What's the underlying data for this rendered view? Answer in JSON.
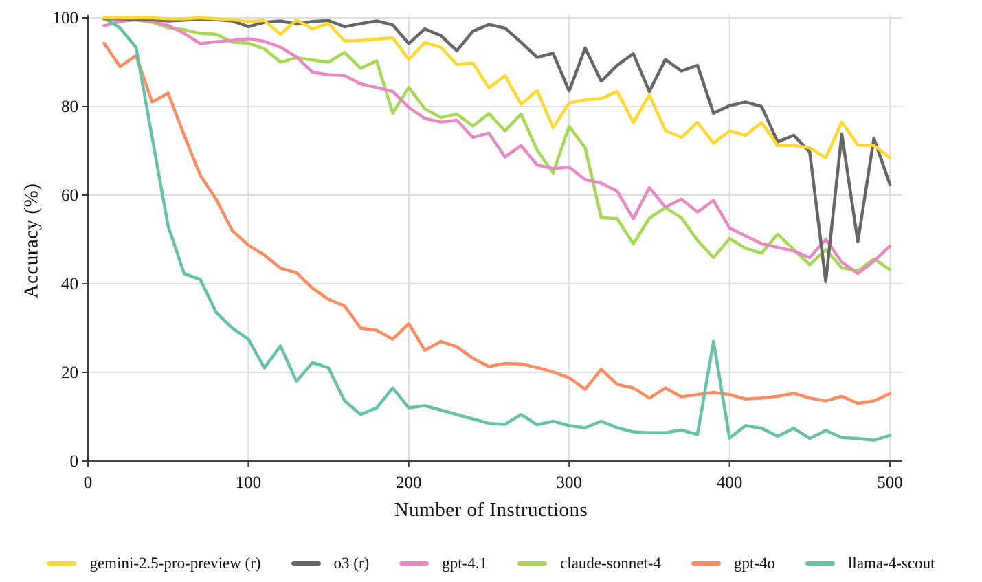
{
  "chart_data": {
    "type": "line",
    "title": "",
    "xlabel": "Number of Instructions",
    "ylabel": "Accuracy (%)",
    "xlim": [
      0,
      510
    ],
    "ylim": [
      0,
      100
    ],
    "x_ticks": [
      0,
      100,
      200,
      300,
      400,
      500
    ],
    "y_ticks": [
      0,
      20,
      40,
      60,
      80,
      100
    ],
    "grid": true,
    "legend_position": "bottom",
    "grid_color": "#dcdcdc",
    "axis_color": "#3f3f3f",
    "x": [
      10,
      20,
      30,
      40,
      50,
      60,
      70,
      80,
      90,
      100,
      110,
      120,
      130,
      140,
      150,
      160,
      170,
      180,
      190,
      200,
      210,
      220,
      230,
      240,
      250,
      260,
      270,
      280,
      290,
      300,
      310,
      320,
      330,
      340,
      350,
      360,
      370,
      380,
      390,
      400,
      410,
      420,
      430,
      440,
      450,
      460,
      470,
      480,
      490,
      500
    ],
    "series": [
      {
        "name": "gemini-2.5-pro-preview (r)",
        "color": "#ffd92f",
        "values": [
          100,
          100,
          100,
          100,
          99.8,
          99.8,
          100,
          99.8,
          99.6,
          99.2,
          99.4,
          96.3,
          99.5,
          97.5,
          98.7,
          94.8,
          94.9,
          95.2,
          95.5,
          90.6,
          94.4,
          93.4,
          89.5,
          89.8,
          84.2,
          87,
          80.5,
          83.6,
          75.2,
          80.8,
          81.5,
          81.8,
          83.4,
          76.4,
          82.6,
          74.6,
          73,
          76.4,
          71.7,
          74.5,
          73.5,
          76.4,
          71.2,
          71.2,
          70.7,
          68.4,
          76.5,
          71.3,
          71.2,
          68.4
        ]
      },
      {
        "name": "o3 (r)",
        "color": "#666666",
        "values": [
          99.8,
          99.8,
          99.6,
          99.6,
          99.3,
          99.5,
          99.7,
          99.6,
          99.3,
          98,
          99,
          99.3,
          98.6,
          99.2,
          99.4,
          98,
          98.7,
          99.3,
          98.4,
          94.2,
          97.5,
          96,
          92.6,
          97,
          98.5,
          97.7,
          94.5,
          91.1,
          92,
          83.5,
          93.2,
          85.7,
          89.3,
          91.9,
          83.4,
          90.6,
          88,
          89.3,
          78.5,
          80.2,
          81,
          80,
          72,
          73.5,
          69.7,
          40.5,
          73.8,
          49.5,
          72.8,
          62.4
        ]
      },
      {
        "name": "gpt-4.1",
        "color": "#e78ac3",
        "values": [
          98.2,
          99.2,
          99.6,
          99.2,
          98.3,
          96.5,
          94.2,
          94.6,
          94.9,
          95.3,
          94.7,
          93.4,
          91.2,
          87.7,
          87.2,
          87,
          85.1,
          84.3,
          83.4,
          79.8,
          77.3,
          76.5,
          76.9,
          73,
          74,
          68.6,
          71.2,
          66.8,
          66,
          66.3,
          63.5,
          62.7,
          60.9,
          54.7,
          61.7,
          57.3,
          59.1,
          56.2,
          58.8,
          52.6,
          50.8,
          49,
          48.2,
          47.4,
          45.9,
          50,
          44.9,
          42.3,
          45.1,
          48.5
        ]
      },
      {
        "name": "claude-sonnet-4",
        "color": "#a6d854",
        "values": [
          99.8,
          99.7,
          99.5,
          99,
          97.8,
          97.3,
          96.5,
          96.3,
          94.5,
          94.3,
          93,
          90,
          91,
          90.5,
          90,
          92.2,
          88.6,
          90.3,
          78.5,
          84.3,
          79.5,
          77.5,
          78.3,
          75.6,
          78.4,
          74.5,
          78.3,
          70.2,
          65,
          75.5,
          70.7,
          54.9,
          54.7,
          49,
          54.8,
          57.2,
          54.9,
          49.8,
          45.9,
          50.2,
          48,
          46.9,
          51.2,
          47.7,
          44.3,
          47.7,
          43.6,
          42.9,
          45.6,
          43.2
        ]
      },
      {
        "name": "gpt-4o",
        "color": "#fc8d62",
        "values": [
          94.3,
          89,
          91.5,
          81,
          83,
          73.5,
          64.5,
          59,
          52,
          48.7,
          46.5,
          43.5,
          42.5,
          39,
          36.5,
          35,
          30,
          29.5,
          27.5,
          31,
          25,
          27,
          25.8,
          23.2,
          21.3,
          22,
          21.9,
          21.1,
          20.1,
          18.8,
          16.2,
          20.7,
          17.3,
          16.5,
          14.2,
          16.5,
          14.5,
          15,
          15.5,
          15,
          14,
          14.2,
          14.6,
          15.3,
          14.2,
          13.6,
          14.6,
          13,
          13.6,
          15.2
        ]
      },
      {
        "name": "llama-4-scout",
        "color": "#66c2a5",
        "values": [
          100,
          97.7,
          93.3,
          73,
          53,
          42.3,
          41,
          33.5,
          30,
          27.5,
          21,
          26,
          18,
          22.2,
          21,
          13.6,
          10.5,
          12,
          16.5,
          12,
          12.5,
          11.5,
          10.5,
          9.5,
          8.5,
          8.3,
          10.5,
          8.2,
          9,
          8,
          7.5,
          9,
          7.5,
          6.6,
          6.4,
          6.4,
          7,
          6,
          27,
          5.2,
          8,
          7.4,
          5.6,
          7.4,
          5.1,
          6.9,
          5.3,
          5.1,
          4.7,
          5.8
        ]
      }
    ]
  }
}
